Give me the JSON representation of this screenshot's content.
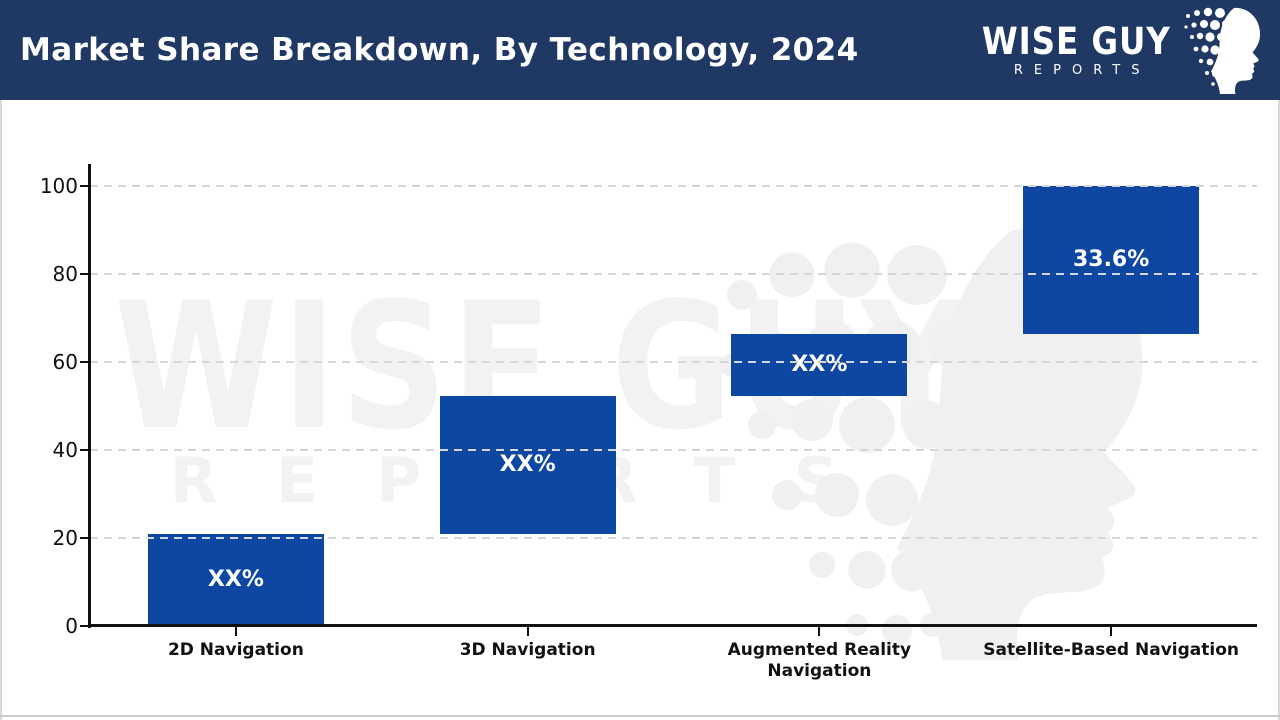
{
  "header": {
    "title": "Market Share Breakdown, By Technology, 2024",
    "bg_color": "#1f3864",
    "logo": {
      "line1": "WISE GUY",
      "line2": "REPORTS"
    }
  },
  "watermark": {
    "line1": "WISE GUY",
    "line2": "REPORTS"
  },
  "chart_data": {
    "type": "bar",
    "subtype": "waterfall",
    "title": "Market Share Breakdown, By Technology, 2024",
    "categories": [
      "2D Navigation",
      "3D Navigation",
      "Augmented Reality Navigation",
      "Satellite-Based Navigation"
    ],
    "bars": [
      {
        "category": "2D Navigation",
        "start": 0,
        "end": 21,
        "label": "XX%"
      },
      {
        "category": "3D Navigation",
        "start": 21,
        "end": 52.3,
        "label": "XX%"
      },
      {
        "category": "Augmented Reality Navigation",
        "start": 52.3,
        "end": 66.4,
        "label": "XX%"
      },
      {
        "category": "Satellite-Based Navigation",
        "start": 66.4,
        "end": 100,
        "label": "33.6%"
      }
    ],
    "ylim": [
      0,
      100
    ],
    "yticks": [
      0,
      20,
      40,
      60,
      80,
      100
    ],
    "grid": {
      "horizontal": true,
      "style": "dashed",
      "color": "#d7d7d7",
      "drawn_above_bars": true
    },
    "bar_color": "#0d47a1",
    "value_label_color": "#ffffff",
    "axis_color": "#111111",
    "legend": "none"
  }
}
